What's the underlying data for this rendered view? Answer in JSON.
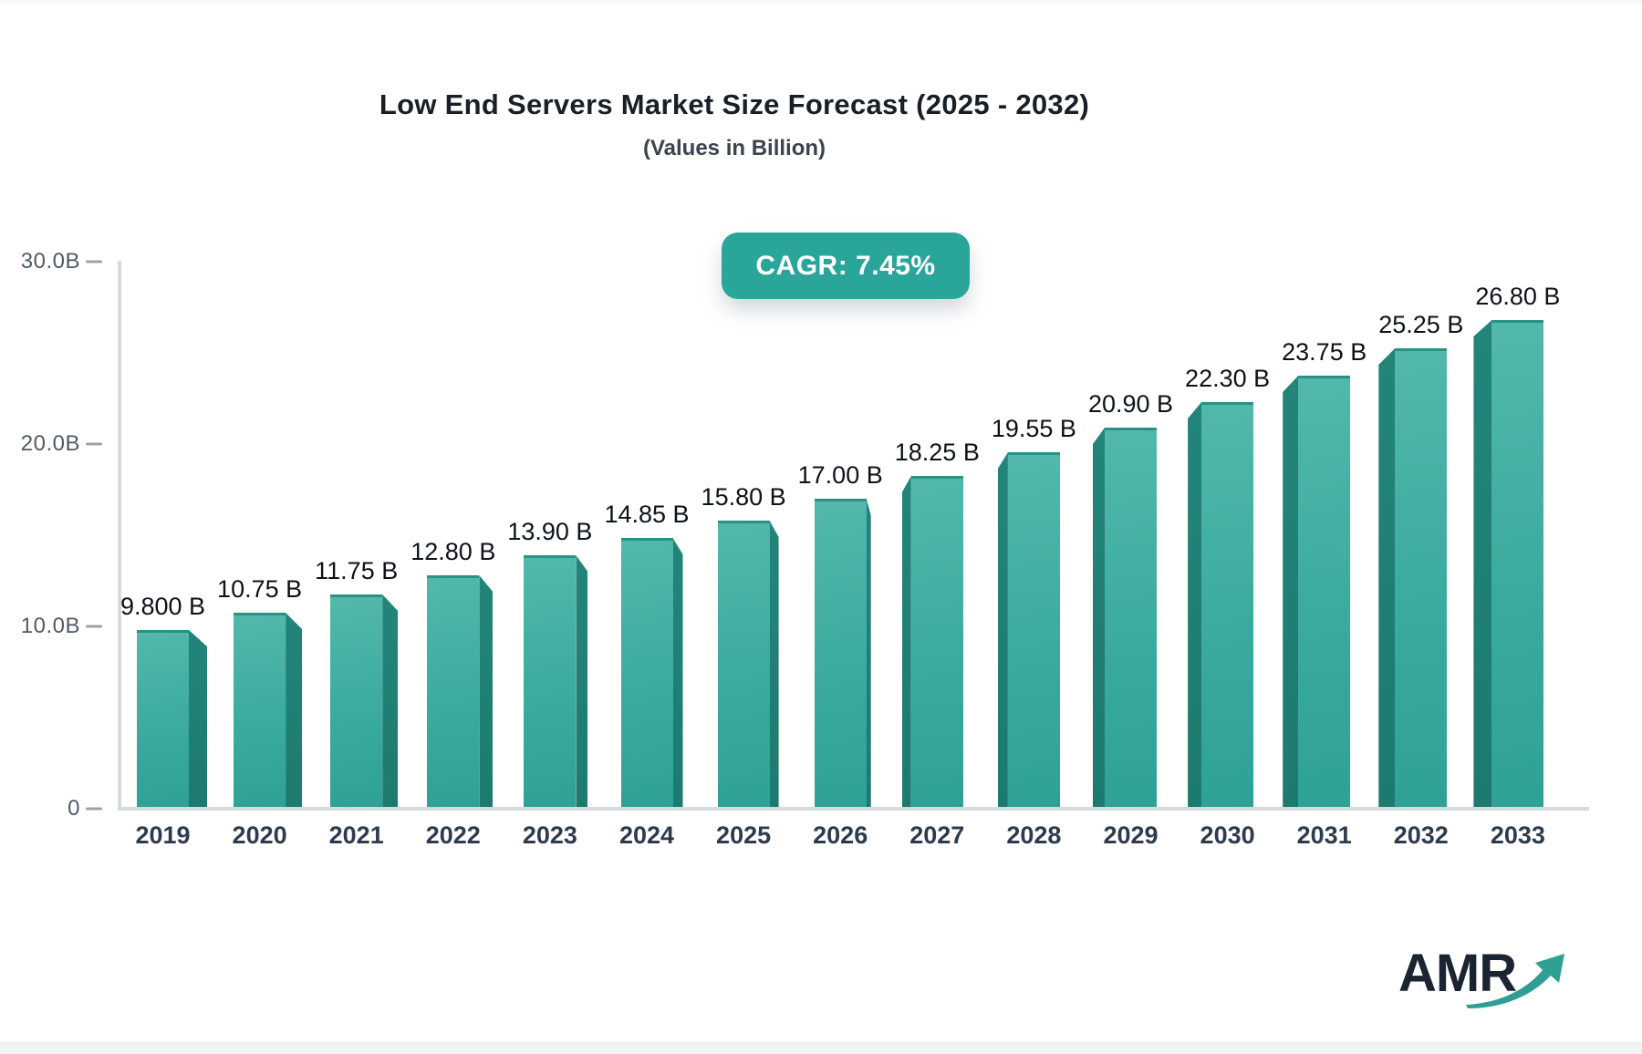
{
  "header": {
    "title": "Low End Servers Market Size Forecast (2025 - 2032)",
    "subtitle": "(Values in Billion)",
    "cagr_badge": "CAGR: 7.45%"
  },
  "chart_data": {
    "type": "bar",
    "title": "Low End Servers Market Size Forecast (2025 - 2032)",
    "subtitle": "(Values in Billion)",
    "annotation": "CAGR: 7.45%",
    "categories": [
      "2019",
      "2020",
      "2021",
      "2022",
      "2023",
      "2024",
      "2025",
      "2026",
      "2027",
      "2028",
      "2029",
      "2030",
      "2031",
      "2032",
      "2033"
    ],
    "values": [
      9.8,
      10.75,
      11.75,
      12.8,
      13.9,
      14.85,
      15.8,
      17.0,
      18.25,
      19.55,
      20.9,
      22.3,
      23.75,
      25.25,
      26.8
    ],
    "value_labels": [
      "9.800 B",
      "10.75 B",
      "11.75 B",
      "12.80 B",
      "13.90 B",
      "14.85 B",
      "15.80 B",
      "17.00 B",
      "18.25 B",
      "19.55 B",
      "20.90 B",
      "22.30 B",
      "23.75 B",
      "25.25 B",
      "26.80 B"
    ],
    "xlabel": "",
    "ylabel": "",
    "ylim": [
      0,
      30
    ],
    "grid": false,
    "legend": false,
    "y_ticks": [
      {
        "label": "30.0B",
        "value": 30
      },
      {
        "label": "20.0B",
        "value": 20
      },
      {
        "label": "10.0B",
        "value": 10
      },
      {
        "label": "0",
        "value": 0
      }
    ]
  },
  "colors": {
    "badge_background": "#2aa59a",
    "bar_front_top": "#52b8ab",
    "bar_front_bottom": "#2ea195",
    "bar_side": "#1e7c70",
    "bar_top_edge": "#2a9185",
    "axis_line": "#d6dade",
    "tick_dash": "#9aa3ad",
    "title_text": "#191f27",
    "subtitle_text": "#3a4350",
    "year_label_text": "#2d3b4e",
    "value_label_text": "#0d1218",
    "y_tick_text": "#4f5a66"
  },
  "footer": {
    "logo_text": "AMR",
    "logo_text_color": "#1a2531",
    "logo_arrow_color": "#2f9e93"
  }
}
